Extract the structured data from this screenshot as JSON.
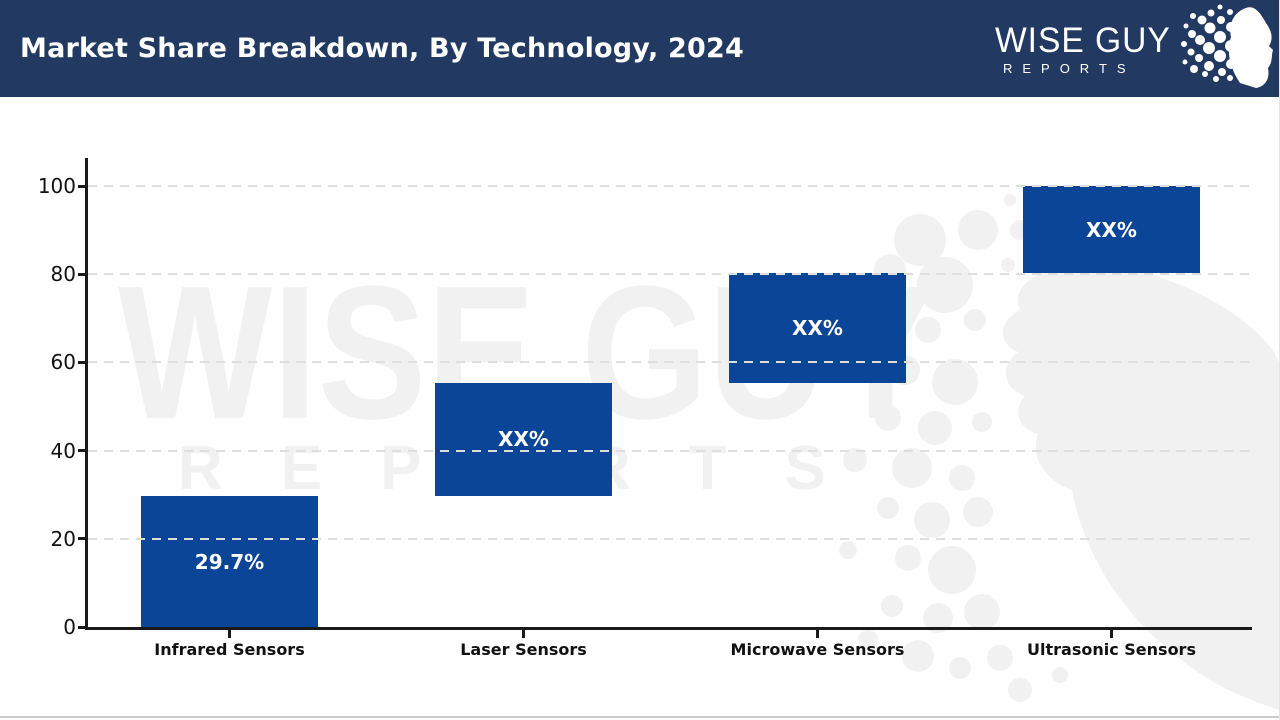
{
  "header": {
    "title": "Market Share Breakdown, By Technology, 2024",
    "logo": {
      "line1": "WISE GUY",
      "line2": "REPORTS"
    }
  },
  "watermark": {
    "line1": "WISE GUY",
    "line2": "REPORTS"
  },
  "chart_data": {
    "type": "bar",
    "variant": "waterfall",
    "title": "Market Share Breakdown, By Technology, 2024",
    "categories": [
      "Infrared Sensors",
      "Laser Sensors",
      "Microwave Sensors",
      "Ultrasonic Sensors"
    ],
    "series": [
      {
        "name": "Market share (%)",
        "segments": [
          {
            "category": "Infrared Sensors",
            "label": "29.7%",
            "start": 0,
            "end": 29.7
          },
          {
            "category": "Laser Sensors",
            "label": "XX%",
            "start": 29.7,
            "end": 55.4
          },
          {
            "category": "Microwave Sensors",
            "label": "XX%",
            "start": 55.4,
            "end": 80.2
          },
          {
            "category": "Ultrasonic Sensors",
            "label": "XX%",
            "start": 80.2,
            "end": 100
          }
        ]
      }
    ],
    "xlabel": "",
    "ylabel": "",
    "yticks": [
      0,
      20,
      40,
      60,
      80,
      100
    ],
    "ylim": [
      0,
      106
    ],
    "grid": true,
    "grid_style": "dashed",
    "legend": false,
    "bar_color": "#0B4598",
    "bar_label_color": "#FFFFFF"
  },
  "colors": {
    "header_bg": "#223A62",
    "bar": "#0B4598",
    "grid": "#DEDEDE",
    "axis": "#1A1A1A",
    "watermark": "#F1F1F1",
    "page_bg": "#FFFFFF",
    "bottom_rule": "#CCCCCC"
  }
}
